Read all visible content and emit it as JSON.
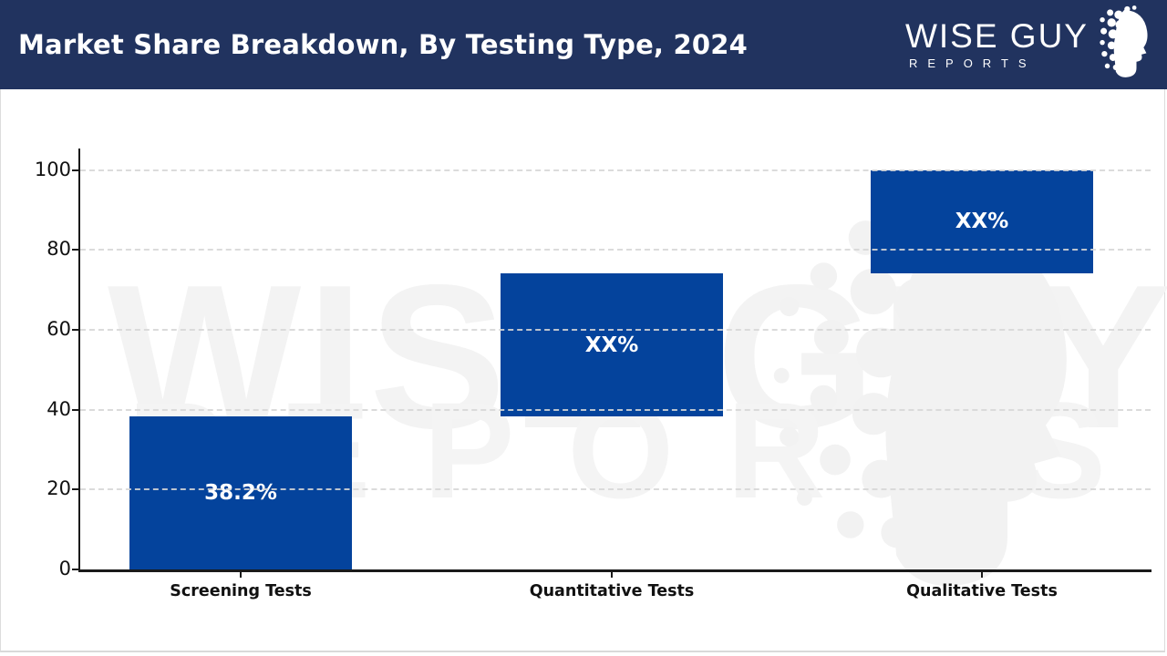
{
  "header": {
    "title": "Market Share Breakdown, By Testing Type, 2024",
    "bg_color": "#21335f",
    "logo": {
      "line1": "WISE GUY",
      "line2": "REPORTS"
    }
  },
  "watermark": {
    "line1": "WISE GUY",
    "line2": "REPORTS"
  },
  "colors": {
    "bar": "#04439c",
    "header_navy": "#21335f",
    "gridline": "#d6d6d6",
    "axis": "#1a1a1a",
    "watermark_gray": "#f3f3f3"
  },
  "chart_data": {
    "type": "bar",
    "subtype": "waterfall",
    "title": "Market Share Breakdown, By Testing Type, 2024",
    "categories": [
      "Screening Tests",
      "Quantitative Tests",
      "Qualitative Tests"
    ],
    "bars": [
      {
        "category": "Screening Tests",
        "base": 0,
        "top": 38.2,
        "label": "38.2%"
      },
      {
        "category": "Quantitative Tests",
        "base": 38.2,
        "top": 74.1,
        "label": "XX%"
      },
      {
        "category": "Qualitative Tests",
        "base": 74.1,
        "top": 100,
        "label": "XX%"
      }
    ],
    "xlabel": "",
    "ylabel": "",
    "ylim": [
      0,
      105
    ],
    "yticks": [
      0,
      20,
      40,
      60,
      80,
      100
    ],
    "ytick_labels": [
      "0",
      "20",
      "40",
      "60",
      "80",
      "100"
    ],
    "grid": "dashed horizontal",
    "legend": "none",
    "bar_color": "#04439c",
    "value_label_color": "#ffffff"
  }
}
